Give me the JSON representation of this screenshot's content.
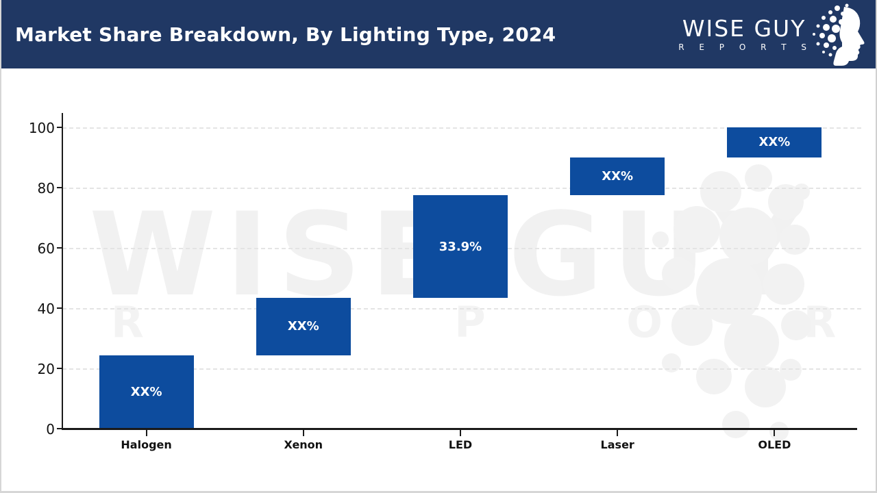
{
  "header": {
    "title": "Market Share Breakdown, By Lighting Type, 2024",
    "logo": {
      "wordmark": "WISE GUY",
      "subtitle": "R E P O R T S",
      "head_icon": "dotted-head-profile"
    }
  },
  "watermark": {
    "wordmark": "WISE GUY",
    "subtitle": "R E P O R T S",
    "head_icon": "dotted-head-profile"
  },
  "colors": {
    "header_bg": "#203864",
    "title_text": "#ffffff",
    "bar_fill": "#0d4c9e",
    "bar_label_text": "#ffffff",
    "axis": "#1a1a1a",
    "gridline": "#e4e4e4",
    "watermark": "#f1f1f1",
    "page_border": "#d6d6d6"
  },
  "chart_data": {
    "type": "bar",
    "subtype": "waterfall",
    "title": "Market Share Breakdown, By Lighting Type, 2024",
    "xlabel": "",
    "ylabel": "",
    "categories": [
      "Halogen",
      "Xenon",
      "LED",
      "Laser",
      "OLED"
    ],
    "segments": [
      {
        "category": "Halogen",
        "start": 0,
        "end": 24.3,
        "height": 24.3,
        "label": "XX%"
      },
      {
        "category": "Xenon",
        "start": 24.3,
        "end": 43.5,
        "height": 19.2,
        "label": "XX%"
      },
      {
        "category": "LED",
        "start": 43.5,
        "end": 77.4,
        "height": 33.9,
        "label": "33.9%"
      },
      {
        "category": "Laser",
        "start": 77.4,
        "end": 90.1,
        "height": 12.7,
        "label": "XX%"
      },
      {
        "category": "OLED",
        "start": 90.1,
        "end": 100,
        "height": 9.9,
        "label": "XX%"
      }
    ],
    "yticks": [
      0,
      20,
      40,
      60,
      80,
      100
    ],
    "ylim": [
      0,
      105
    ],
    "grid": "dashed horizontal",
    "legend": "none"
  }
}
